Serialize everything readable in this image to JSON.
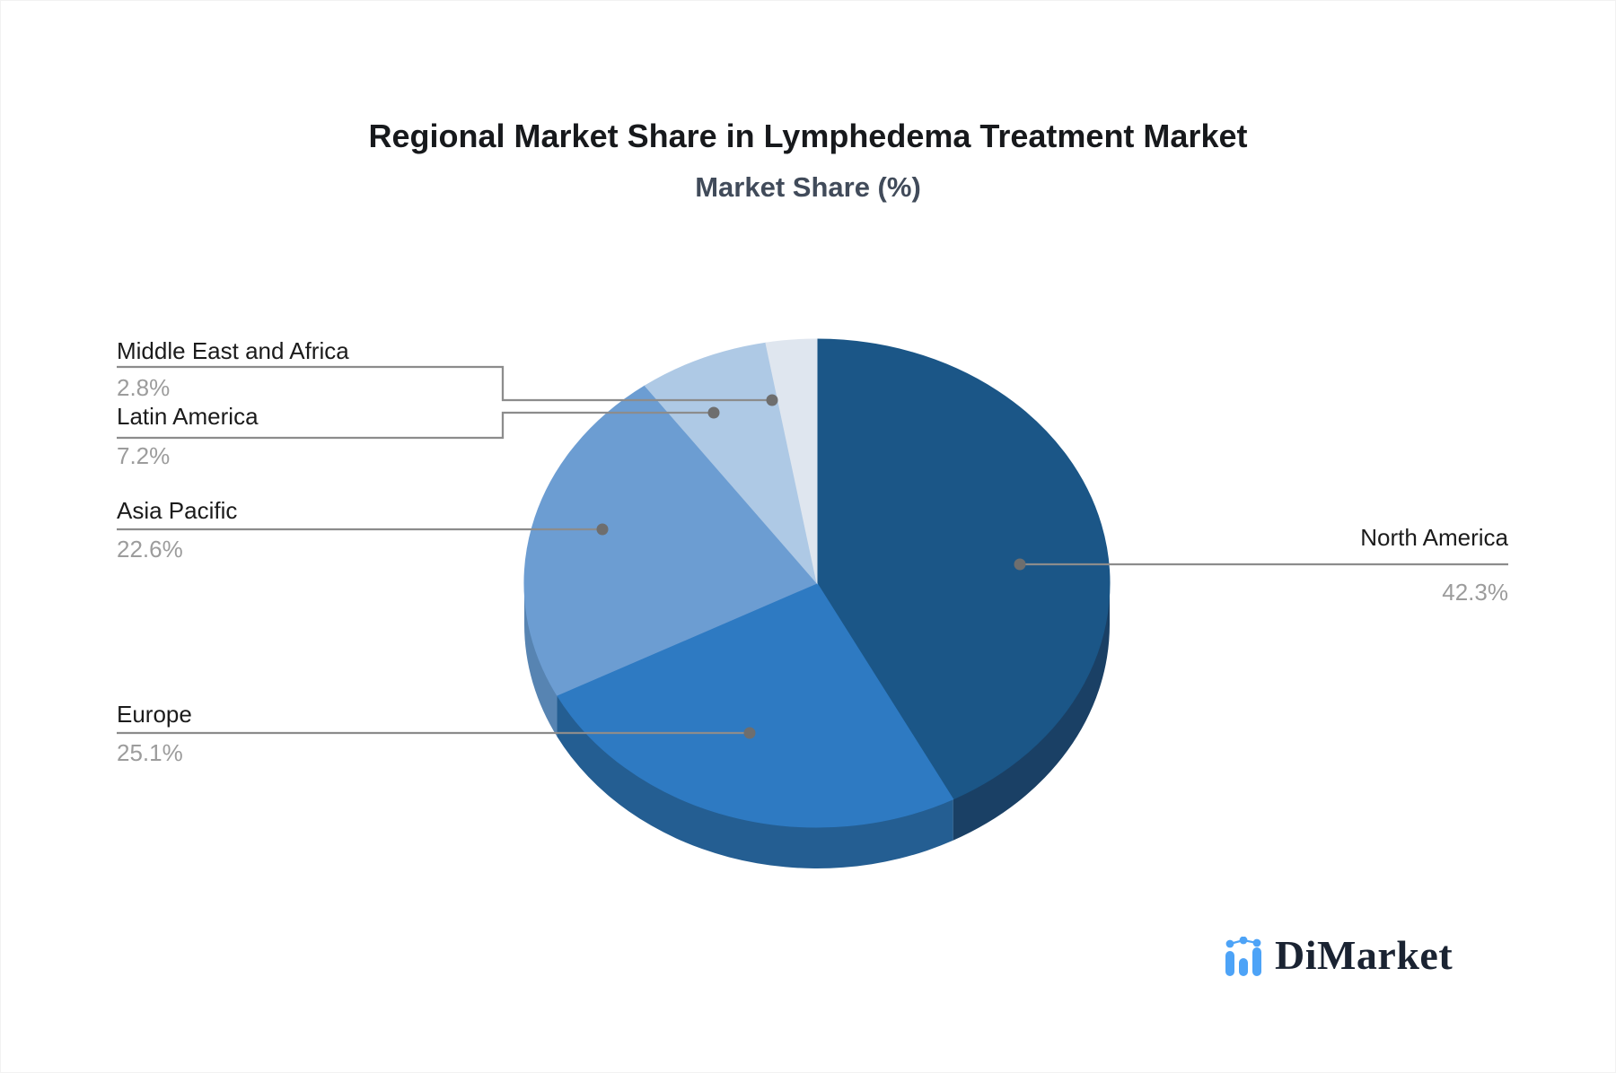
{
  "chart_data": {
    "type": "pie",
    "style": "3d",
    "title": "Regional Market Share in Lymphedema Treatment Market",
    "subtitle": "Market Share (%)",
    "unit": "%",
    "start_angle_deg": 0,
    "direction": "clockwise",
    "legend_position": "none",
    "labels_position": "outside-callouts",
    "slices": [
      {
        "label": "North America",
        "value": 42.3,
        "display": "42.3%",
        "color": "#1B5687",
        "side_color": "#1A4065"
      },
      {
        "label": "Europe",
        "value": 25.1,
        "display": "25.1%",
        "color": "#2E7AC2",
        "side_color": "#245E92"
      },
      {
        "label": "Asia Pacific",
        "value": 22.6,
        "display": "22.6%",
        "color": "#6C9DD2",
        "side_color": "#5784B2"
      },
      {
        "label": "Latin America",
        "value": 7.2,
        "display": "7.2%",
        "color": "#AEC9E5",
        "side_color": "#8FA9C6"
      },
      {
        "label": "Middle East and Africa",
        "value": 2.8,
        "display": "2.8%",
        "color": "#DFE6EF",
        "side_color": "#B9C3D1"
      }
    ]
  },
  "brand": {
    "name": "DiMarket",
    "icon": "bar-chart-logo"
  },
  "colors": {
    "background": "#FFFFFF",
    "title_text": "#17191C",
    "subtitle_text": "#414B5A",
    "label_text": "#1B1B1B",
    "percent_text": "#9C9C9C",
    "leader_line": "#8C8C8C",
    "leader_dot": "#6E6E6E",
    "logo_bars": "#4DA3F7",
    "logo_text": "#1A2332"
  }
}
